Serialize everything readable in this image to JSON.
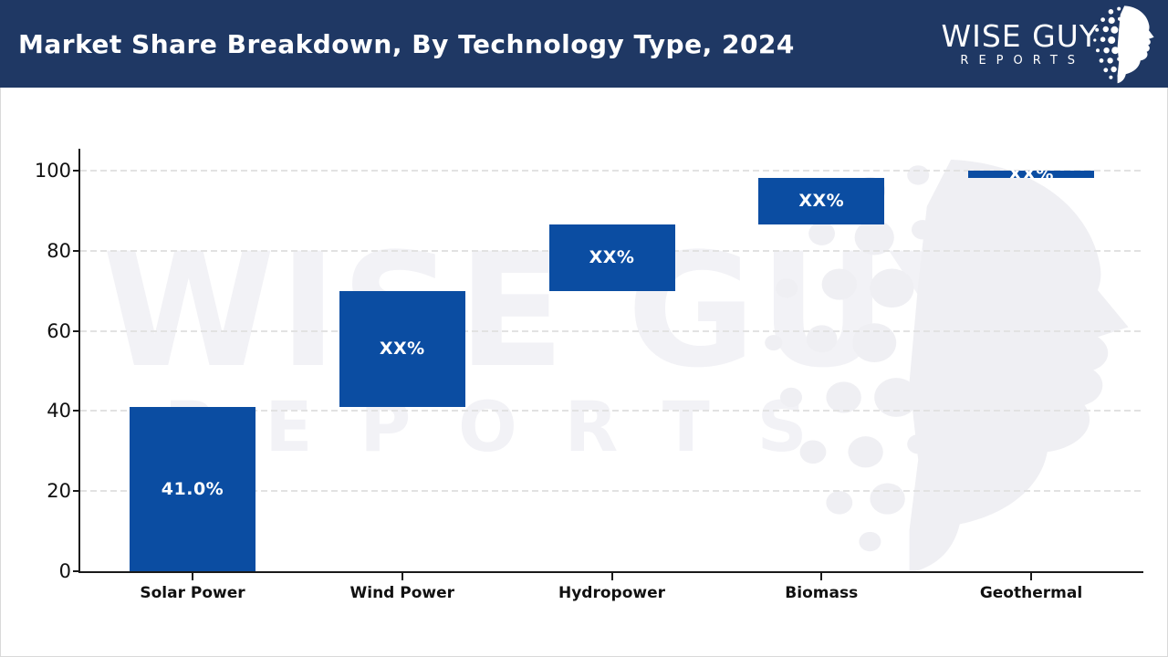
{
  "header": {
    "title": "Market Share Breakdown, By Technology Type, 2024",
    "bg_color": "#1f3864",
    "logo": {
      "wordmark": "WISE GUY",
      "subtext": "REPORTS"
    }
  },
  "watermark": {
    "wordmark": "WISE GUY",
    "subtext": "REPORTS"
  },
  "chart_data": {
    "type": "bar",
    "subtype": "floating-waterfall",
    "title": "Market Share Breakdown, By Technology Type, 2024",
    "categories": [
      "Solar Power",
      "Wind Power",
      "Hydropower",
      "Biomass",
      "Geothermal"
    ],
    "segments": [
      {
        "category": "Solar Power",
        "start": 0,
        "end": 41.0,
        "label": "41.0%"
      },
      {
        "category": "Wind Power",
        "start": 41.0,
        "end": 70.0,
        "label": "XX%"
      },
      {
        "category": "Hydropower",
        "start": 70.0,
        "end": 86.6,
        "label": "XX%"
      },
      {
        "category": "Biomass",
        "start": 86.6,
        "end": 98.3,
        "label": "XX%"
      },
      {
        "category": "Geothermal",
        "start": 98.3,
        "end": 100.0,
        "label": "XX%"
      }
    ],
    "y_ticks": [
      0,
      20,
      40,
      60,
      80,
      100
    ],
    "ylim": [
      0,
      105.5
    ],
    "xlabel": "",
    "ylabel": "",
    "legend": "none",
    "grid": {
      "axis": "y",
      "style": "dashed",
      "color": "#e2e2e2"
    },
    "bar_color": "#0b4da2",
    "bar_label_color": "#ffffff",
    "axis_color": "#1a1a1a",
    "tick_label_color": "#111111"
  }
}
